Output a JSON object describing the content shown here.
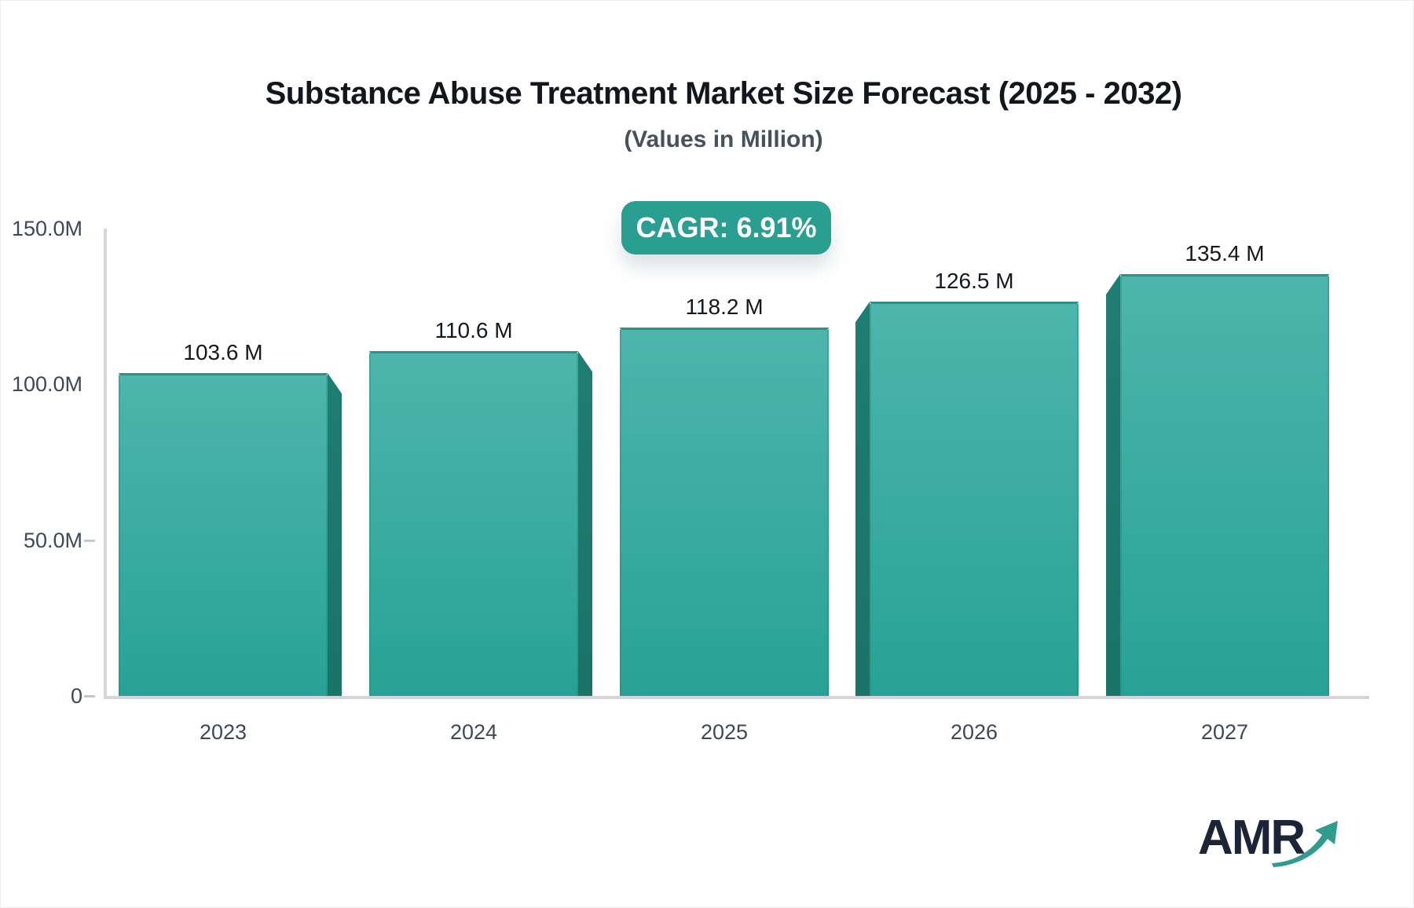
{
  "title": "Substance Abuse Treatment Market Size Forecast (2025 - 2032)",
  "subtitle": "(Values in Million)",
  "badge": {
    "label": "CAGR: 6.91%"
  },
  "logo": {
    "text": "AMR",
    "arrow_icon": "trend-up-arrow"
  },
  "colors": {
    "accent_teal": "#2b9e92",
    "bar_top": "#4db5ac",
    "bar_bottom": "#28a296",
    "bar_side_dark": "#1e7d72",
    "bar_top_edge": "#2c9287",
    "axis_gray": "#d4d8dd",
    "label_slate": "#3e4856",
    "value_dark": "#14181f",
    "logo_navy": "#1b2537"
  },
  "chart_data": {
    "type": "bar",
    "title": "Substance Abuse Treatment Market Size Forecast (2025 - 2032)",
    "subtitle": "(Values in Million)",
    "annotation": "CAGR: 6.91%",
    "unit": "Million",
    "categories": [
      "2023",
      "2024",
      "2025",
      "2026",
      "2027"
    ],
    "values": [
      103.6,
      110.6,
      118.2,
      126.5,
      135.4
    ],
    "value_labels": [
      "103.6 M",
      "110.6 M",
      "118.2 M",
      "126.5 M",
      "135.4 M"
    ],
    "ylim": [
      0,
      150
    ],
    "y_axis": [
      {
        "label": "150.0M",
        "value": 150,
        "tick": false
      },
      {
        "label": "100.0M",
        "value": 100,
        "tick": false
      },
      {
        "label": "50.0M",
        "value": 50,
        "tick": true
      },
      {
        "label": "0",
        "value": 0,
        "tick": true
      }
    ],
    "grid": false,
    "legend": false,
    "bar_style": "3d-extruded, perspective toward center"
  }
}
